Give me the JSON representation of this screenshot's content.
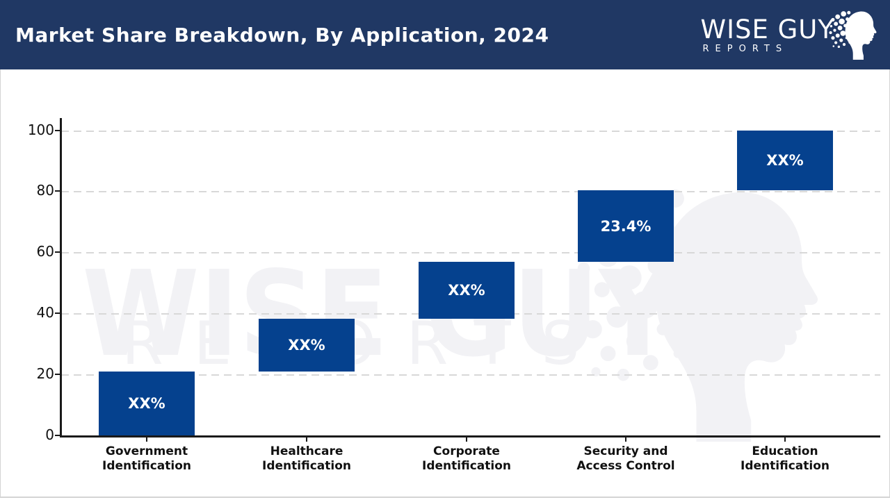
{
  "header": {
    "title": "Market Share Breakdown, By Application, 2024",
    "logo": {
      "line1": "WISE GUY",
      "line2": "REPORTS"
    }
  },
  "watermark": {
    "line1": "WISE GUY",
    "line2": "REPORTS"
  },
  "colors": {
    "header_bg": "#203864",
    "bar": "#05418e",
    "axis": "#1a1a1a",
    "grid": "#d8d8d8",
    "watermark": "#f2f2f5",
    "bar_label": "#ffffff"
  },
  "chart_data": {
    "type": "bar",
    "subtype": "waterfall",
    "title": "Market Share Breakdown, By Application, 2024",
    "categories": [
      [
        "Government",
        "Identification"
      ],
      [
        "Healthcare",
        "Identification"
      ],
      [
        "Corporate",
        "Identification"
      ],
      [
        "Security and",
        "Access Control"
      ],
      [
        "Education",
        "Identification"
      ]
    ],
    "segments": [
      {
        "category": "Government Identification",
        "start": 0,
        "end": 20.9,
        "label": "XX%"
      },
      {
        "category": "Healthcare Identification",
        "start": 20.9,
        "end": 38.2,
        "label": "XX%"
      },
      {
        "category": "Corporate Identification",
        "start": 38.2,
        "end": 56.9,
        "label": "XX%"
      },
      {
        "category": "Security and Access Control",
        "start": 56.9,
        "end": 80.3,
        "label": "23.4%",
        "value": 23.4
      },
      {
        "category": "Education Identification",
        "start": 80.3,
        "end": 100,
        "label": "XX%"
      }
    ],
    "yticks": [
      0,
      20,
      40,
      60,
      80,
      100
    ],
    "ylim": [
      0,
      104
    ],
    "xlabel": "",
    "ylabel": "",
    "grid": "horizontal-dashed",
    "legend": "none"
  }
}
